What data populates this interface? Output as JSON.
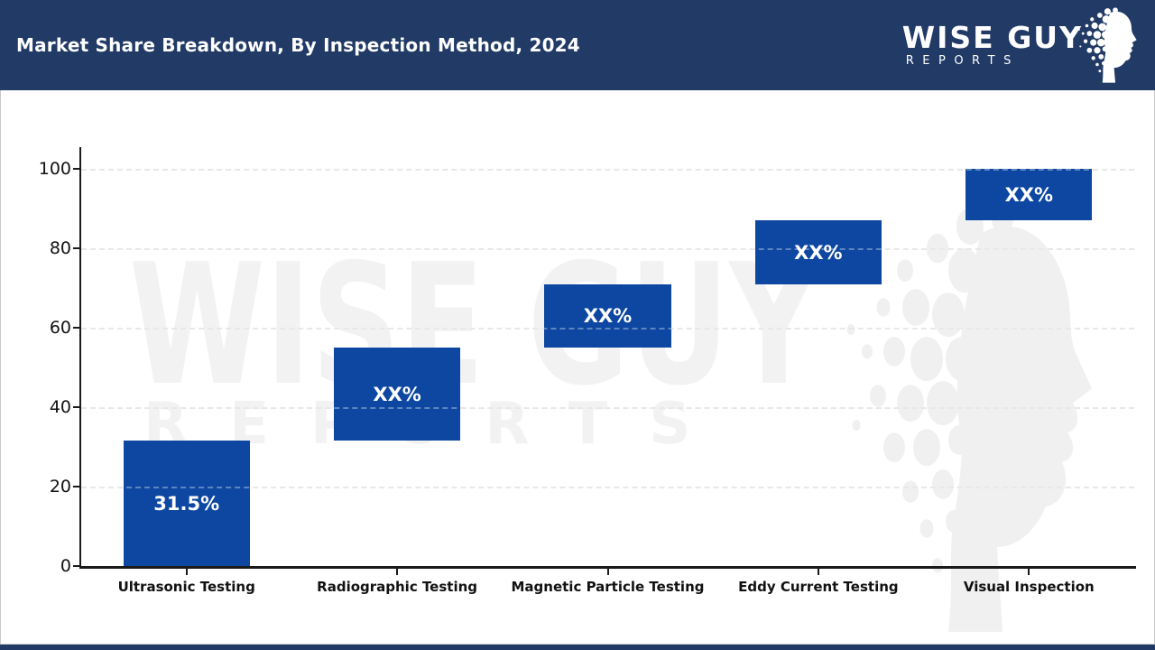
{
  "header": {
    "title": "Market Share Breakdown, By Inspection Method, 2024",
    "logo": {
      "line1": "WISE GUY",
      "line2": "REPORTS"
    }
  },
  "watermark": {
    "line1": "WISE GUY",
    "line2": "REPORTS"
  },
  "colors": {
    "header_bg": "#213a66",
    "bar_fill": "#0d47a1",
    "bar_label": "#ffffff",
    "gridline": "#dcdcdc",
    "axis": "#1a1a1a",
    "watermark": "#f2f2f2"
  },
  "chart_data": {
    "type": "bar",
    "subtype": "waterfall",
    "title": "Market Share Breakdown, By Inspection Method, 2024",
    "categories": [
      "Ultrasonic Testing",
      "Radiographic Testing",
      "Magnetic Particle Testing",
      "Eddy Current Testing",
      "Visual Inspection"
    ],
    "segments": [
      {
        "category": "Ultrasonic Testing",
        "start": 0,
        "end": 31.5,
        "value": 31.5,
        "label": "31.5%"
      },
      {
        "category": "Radiographic Testing",
        "start": 31.5,
        "end": 55,
        "value": 23.5,
        "label": "XX%"
      },
      {
        "category": "Magnetic Particle Testing",
        "start": 55,
        "end": 71,
        "value": 16,
        "label": "XX%"
      },
      {
        "category": "Eddy Current Testing",
        "start": 71,
        "end": 87,
        "value": 16,
        "label": "XX%"
      },
      {
        "category": "Visual Inspection",
        "start": 87,
        "end": 100,
        "value": 13,
        "label": "XX%"
      }
    ],
    "xlabel": "",
    "ylabel": "",
    "ylim": [
      0,
      105.5
    ],
    "yticks": [
      0,
      20,
      40,
      60,
      80,
      100
    ],
    "grid": "horizontal-dashed",
    "legend": "none"
  }
}
